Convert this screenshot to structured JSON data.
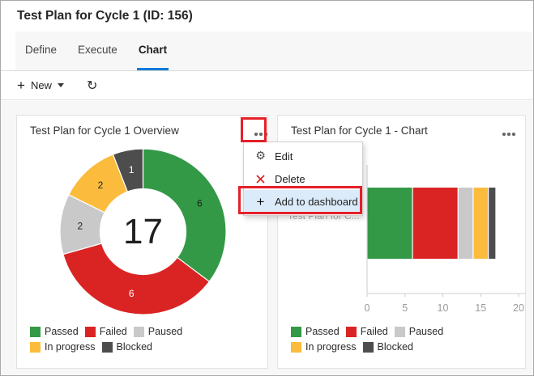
{
  "window": {
    "title": "Test Plan for Cycle 1 (ID: 156)"
  },
  "tabs": [
    {
      "label": "Define",
      "active": false
    },
    {
      "label": "Execute",
      "active": false
    },
    {
      "label": "Chart",
      "active": true
    }
  ],
  "toolbar": {
    "new_label": "New",
    "plus_icon": "+",
    "refresh_icon": "↻"
  },
  "colors": {
    "accent": "#0c7bd6",
    "annotation_red": "#e42029",
    "menu_highlight": "#dcebf9",
    "passed": "#339946",
    "failed": "#da2423",
    "paused": "#c9c9c9",
    "in_progress": "#fbbc3d",
    "blocked": "#4d4d4d"
  },
  "cards": [
    {
      "title": "Test Plan for Cycle 1 Overview"
    },
    {
      "title": "Test Plan for Cycle 1 - Chart"
    }
  ],
  "context_menu": {
    "items": [
      {
        "icon": "gear-icon",
        "label": "Edit",
        "highlighted": false
      },
      {
        "icon": "delete-x-icon",
        "label": "Delete",
        "highlighted": false
      },
      {
        "icon": "plus-icon",
        "label": "Add to dashboard",
        "highlighted": true
      }
    ]
  },
  "chart_data": [
    {
      "type": "pie",
      "subtype": "donut",
      "title": "Test Plan for Cycle 1 Overview",
      "center_total": "17",
      "series": [
        {
          "name": "Passed",
          "value": 6,
          "color": "#339946",
          "label_color": "#1f1f1f"
        },
        {
          "name": "Failed",
          "value": 6,
          "color": "#da2423",
          "label_color": "#ffffff"
        },
        {
          "name": "Paused",
          "value": 2,
          "color": "#c9c9c9",
          "label_color": "#1f1f1f"
        },
        {
          "name": "In progress",
          "value": 2,
          "color": "#fbbc3d",
          "label_color": "#1f1f1f"
        },
        {
          "name": "Blocked",
          "value": 1,
          "color": "#4d4d4d",
          "label_color": "#ffffff"
        }
      ],
      "legend_position": "bottom",
      "start_angle_deg": 0,
      "direction": "clockwise"
    },
    {
      "type": "bar",
      "subtype": "horizontal-stacked",
      "title": "Test Plan for Cycle 1 - Chart",
      "categories": [
        "Test Plan for C..."
      ],
      "series": [
        {
          "name": "Passed",
          "values": [
            6
          ],
          "color": "#339946"
        },
        {
          "name": "Failed",
          "values": [
            6
          ],
          "color": "#da2423"
        },
        {
          "name": "Paused",
          "values": [
            2
          ],
          "color": "#c9c9c9"
        },
        {
          "name": "In progress",
          "values": [
            2
          ],
          "color": "#fbbc3d"
        },
        {
          "name": "Blocked",
          "values": [
            1
          ],
          "color": "#4d4d4d"
        }
      ],
      "xlim": [
        0,
        20
      ],
      "x_ticks": [
        "0",
        "5",
        "10",
        "15",
        "20"
      ],
      "grid": false,
      "legend_position": "bottom"
    }
  ]
}
